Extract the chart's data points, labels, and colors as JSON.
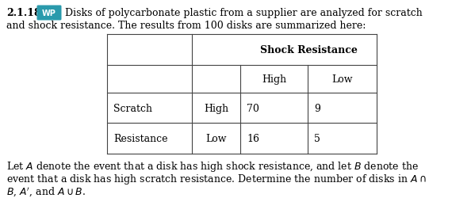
{
  "number": "2.1.18",
  "wp_label": "WP",
  "wp_bg": "#2a9aac",
  "line1_after_badge": "Disks of polycarbonate plastic from a supplier are analyzed for scratch",
  "line2": "and shock resistance. The results from 100 disks are summarized here:",
  "table": {
    "col_header": "Shock Resistance",
    "sub_col1": "High",
    "sub_col2": "Low",
    "row1_label1": "Scratch",
    "row1_label2": "High",
    "row1_val1": "70",
    "row1_val2": "9",
    "row2_label1": "Resistance",
    "row2_label2": "Low",
    "row2_val1": "16",
    "row2_val2": "5"
  },
  "footer_line1": "Let $A$ denote the event that a disk has high shock resistance, and let $B$ denote the",
  "footer_line2": "event that a disk has high scratch resistance. Determine the number of disks in $A \\cap$",
  "footer_line3": "$B$, $A'$, and $A \\cup B$.",
  "bg_color": "#ffffff",
  "text_color": "#000000",
  "font_size_body": 9.0,
  "font_size_table": 9.0,
  "line_color": "#444444",
  "line_width": 0.8
}
